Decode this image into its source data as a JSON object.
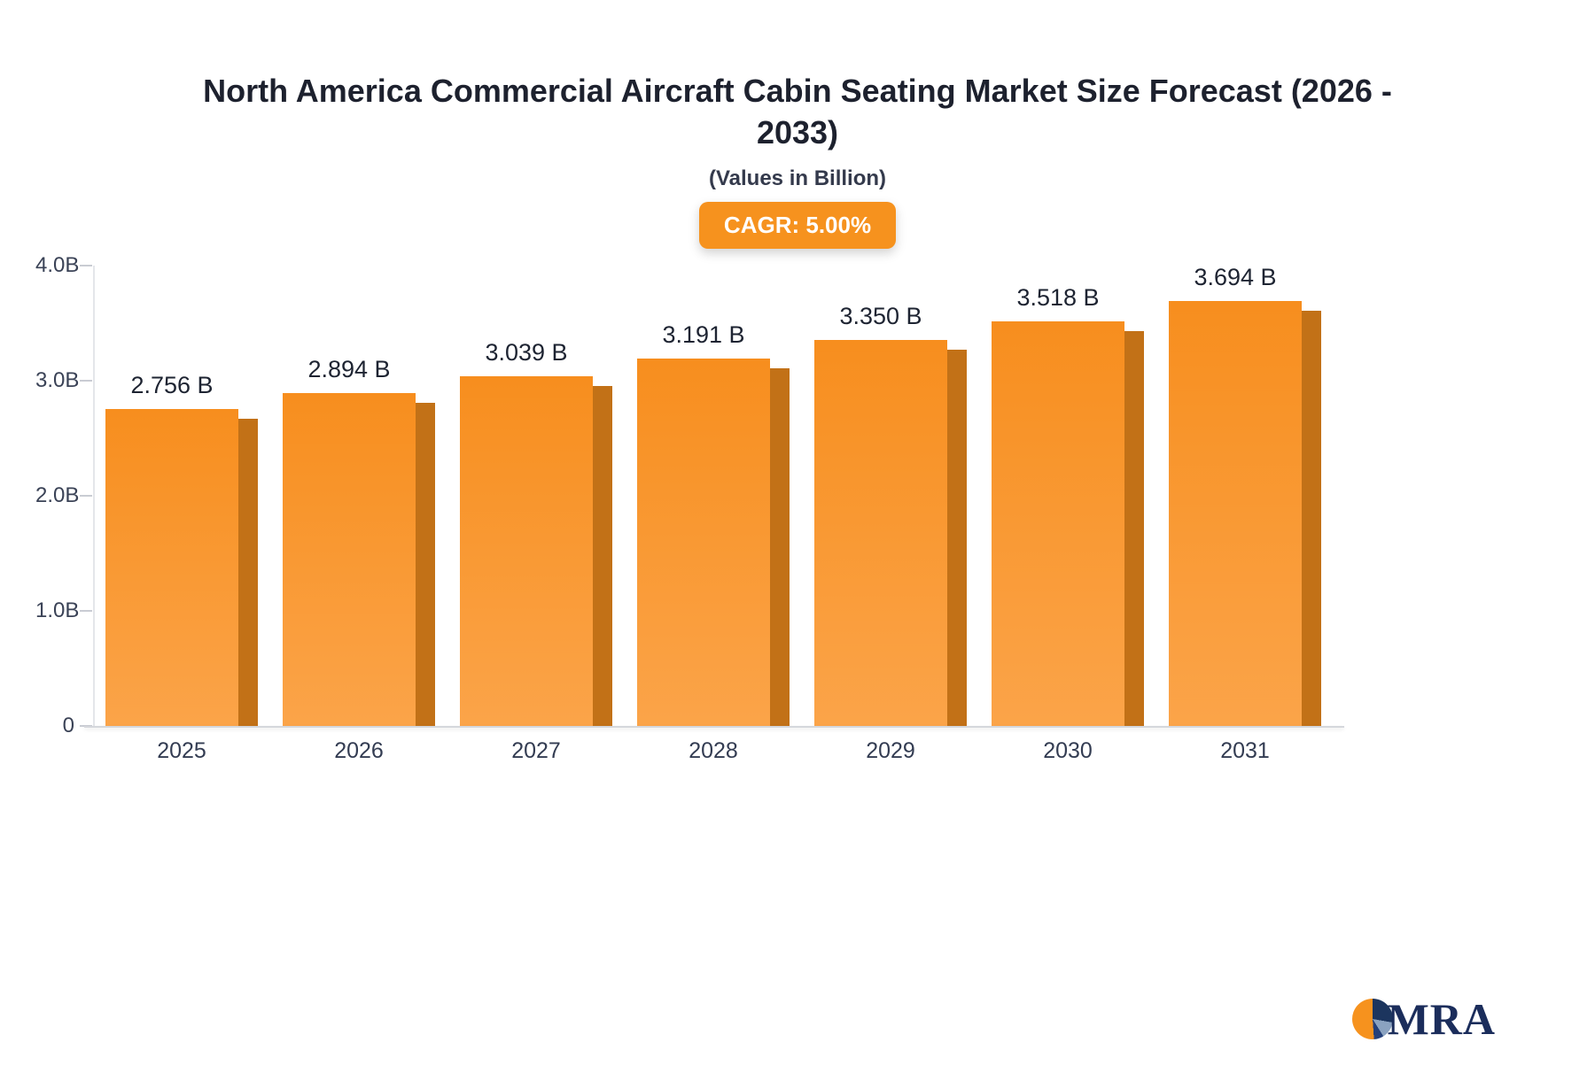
{
  "page": {
    "title": "North America Commercial Aircraft Cabin Seating Market Size Forecast (2026 - 2033)",
    "subtitle": "(Values in Billion)",
    "cagr_badge": "CAGR: 5.00%"
  },
  "chart_data": {
    "type": "bar",
    "title": "North America Commercial Aircraft Cabin Seating Market Size Forecast (2026 - 2033)",
    "subtitle": "(Values in Billion)",
    "annotation": "CAGR: 5.00%",
    "categories": [
      "2025",
      "2026",
      "2027",
      "2028",
      "2029",
      "2030",
      "2031"
    ],
    "values": [
      2.756,
      2.894,
      3.039,
      3.191,
      3.35,
      3.518,
      3.694
    ],
    "value_labels": [
      "2.756 B",
      "2.894 B",
      "3.039 B",
      "3.191 B",
      "3.350 B",
      "3.518 B",
      "3.694 B"
    ],
    "xlabel": "",
    "ylabel": "",
    "ylim": [
      0,
      4.0
    ],
    "yticks": [
      0,
      1.0,
      2.0,
      3.0,
      4.0
    ],
    "ytick_labels": [
      "0",
      "1.0B",
      "2.0B",
      "3.0B",
      "4.0B"
    ],
    "grid": false,
    "legend": false,
    "colors": {
      "bar_top": "#f78e1e",
      "bar_bottom": "#fba449",
      "bar_side": "#c27117",
      "badge": "#f6921e"
    }
  },
  "logo": {
    "text": "MRA"
  }
}
